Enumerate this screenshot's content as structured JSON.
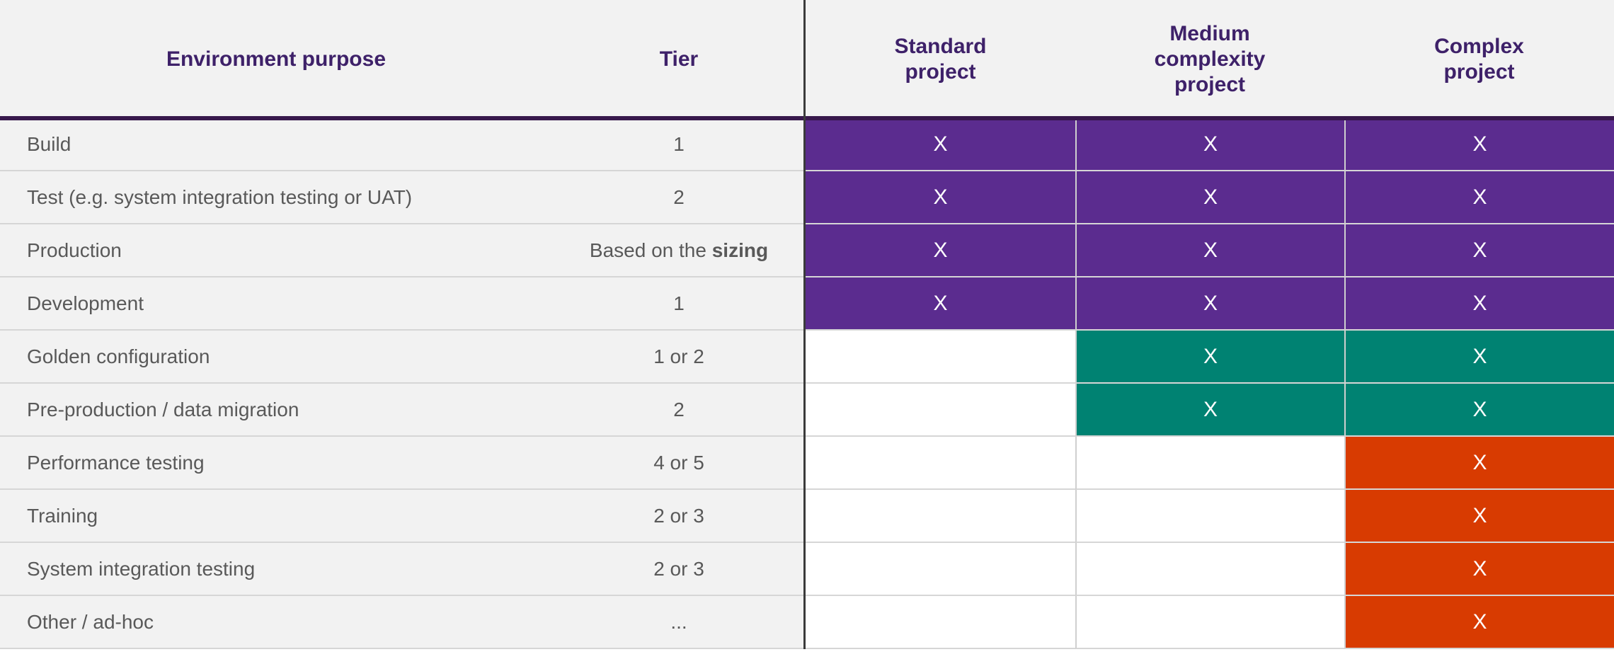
{
  "table": {
    "header": {
      "purpose": "Environment purpose",
      "tier": "Tier",
      "standard": "Standard\nproject",
      "medium": "Medium\ncomplexity\nproject",
      "complex": "Complex\nproject"
    },
    "rows": [
      {
        "purpose": "Build",
        "tier": "1",
        "standard": "X",
        "medium": "X",
        "complex": "X"
      },
      {
        "purpose": "Test (e.g. system integration testing or UAT)",
        "tier": "2",
        "standard": "X",
        "medium": "X",
        "complex": "X"
      },
      {
        "purpose": "Production",
        "tier": "Based on the ",
        "tier_bold": "sizing",
        "standard": "X",
        "medium": "X",
        "complex": "X"
      },
      {
        "purpose": "Development",
        "tier": "1",
        "standard": "X",
        "medium": "X",
        "complex": "X"
      },
      {
        "purpose": "Golden configuration",
        "tier": "1 or 2",
        "standard": "",
        "medium": "X",
        "complex": "X"
      },
      {
        "purpose": "Pre-production / data migration",
        "tier": "2",
        "standard": "",
        "medium": "X",
        "complex": "X"
      },
      {
        "purpose": "Performance testing",
        "tier": "4 or 5",
        "standard": "",
        "medium": "",
        "complex": "X"
      },
      {
        "purpose": "Training",
        "tier": "2 or 3",
        "standard": "",
        "medium": "",
        "complex": "X"
      },
      {
        "purpose": "System integration testing",
        "tier": "2 or 3",
        "standard": "",
        "medium": "",
        "complex": "X"
      },
      {
        "purpose": "Other / ad-hoc",
        "tier": "...",
        "standard": "",
        "medium": "",
        "complex": "X"
      }
    ]
  },
  "colors": {
    "purple": "#5B2C8F",
    "teal": "#008272",
    "orange": "#D83B01",
    "rule": "#38184C",
    "divider": "#3B3B3B",
    "header_text": "#3E2169",
    "body_text": "#595959",
    "row_bg": "#F2F2F2",
    "grid_line": "#D6D6D6"
  }
}
